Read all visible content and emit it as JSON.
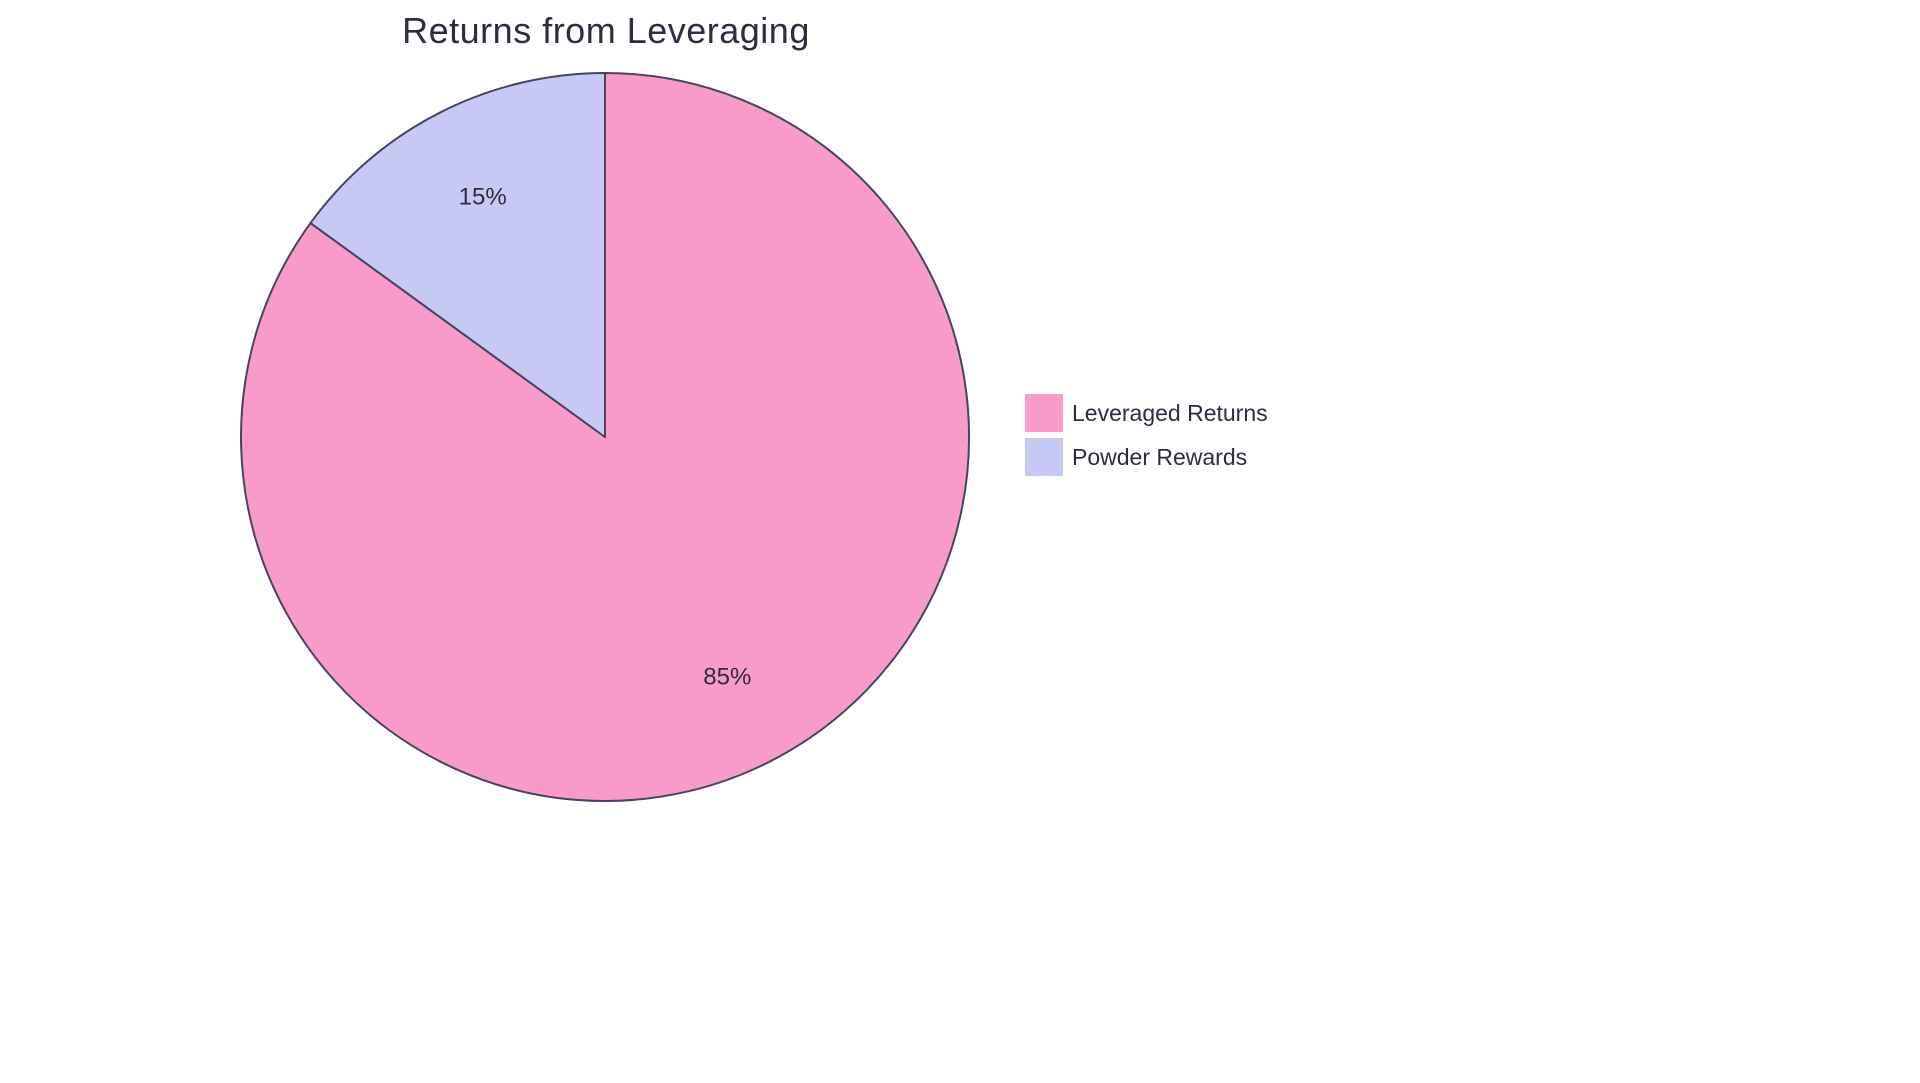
{
  "chart_data": {
    "type": "pie",
    "title": "Returns from Leveraging",
    "slices": [
      {
        "label": "Leveraged Returns",
        "value": 85,
        "display": "85%",
        "color": "#F99BC8"
      },
      {
        "label": "Powder Rewards",
        "value": 15,
        "display": "15%",
        "color": "#C8C8F4"
      }
    ],
    "start_angle_deg": 0,
    "direction": "clockwise",
    "legend_position": "right",
    "slice_border_color": "#454560",
    "label_color": "#2d2d3d",
    "background_color": "#ffffff"
  }
}
